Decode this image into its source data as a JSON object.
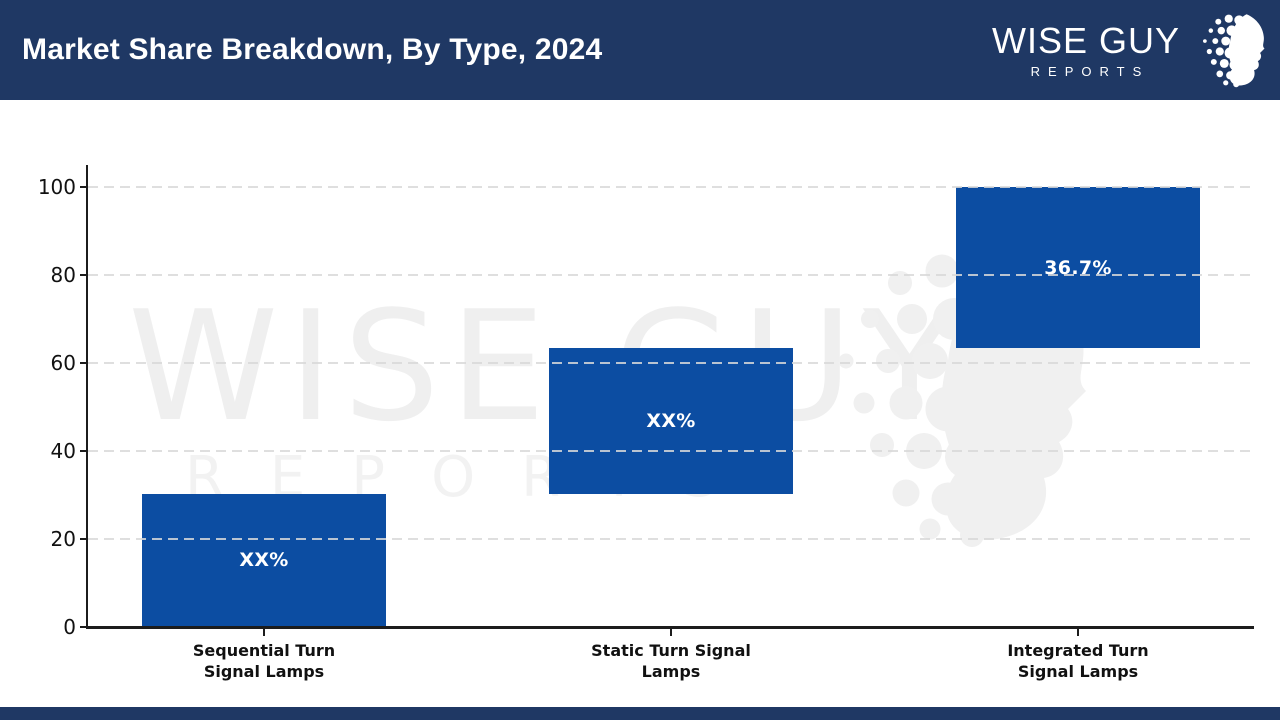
{
  "header": {
    "title": "Market Share Breakdown, By Type, 2024",
    "logo": {
      "line1": "WISE GUY",
      "line2": "REPORTS"
    }
  },
  "watermark": {
    "line1": "WISE GUY",
    "line2": "REPORTS"
  },
  "chart_data": {
    "type": "bar",
    "variant": "floating-waterfall",
    "title": "Market Share Breakdown, By Type, 2024",
    "categories": [
      "Sequential Turn Signal Lamps",
      "Static Turn Signal Lamps",
      "Integrated Turn Signal Lamps"
    ],
    "category_lines": [
      [
        "Sequential Turn",
        "Signal Lamps"
      ],
      [
        "Static Turn Signal",
        "Lamps"
      ],
      [
        "Integrated Turn",
        "Signal Lamps"
      ]
    ],
    "series": [
      {
        "name": "Market Share (%)",
        "segments": [
          {
            "base": 0,
            "top": 30.3,
            "label": "XX%"
          },
          {
            "base": 30.3,
            "top": 63.3,
            "label": "XX%"
          },
          {
            "base": 63.3,
            "top": 100,
            "label": "36.7%"
          }
        ]
      }
    ],
    "ylim": [
      0,
      100
    ],
    "yticks": [
      0,
      20,
      40,
      60,
      80,
      100
    ],
    "grid": "horizontal-dashed",
    "legend": "none",
    "bar_color": "#0c4da2",
    "bar_label_color": "#ffffff",
    "header_color": "#1f3864"
  }
}
